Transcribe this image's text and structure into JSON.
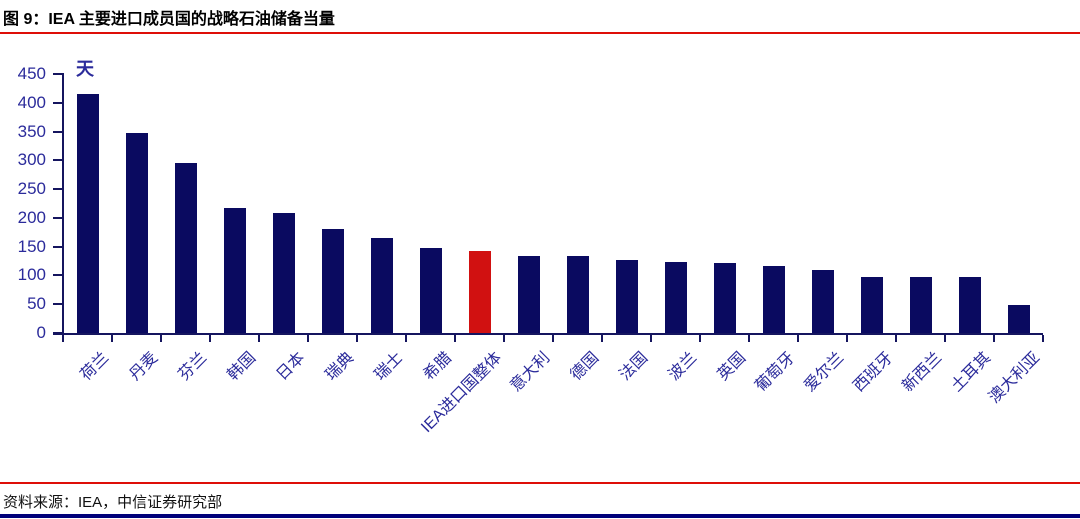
{
  "header": {
    "title": "图 9：IEA 主要进口成员国的战略石油储备当量"
  },
  "footer": {
    "source": "资料来源：IEA，中信证券研究部"
  },
  "chart_data": {
    "type": "bar",
    "title": "IEA 主要进口成员国的战略石油储备当量",
    "unit_label": "天",
    "categories": [
      "荷兰",
      "丹麦",
      "芬兰",
      "韩国",
      "日本",
      "瑞典",
      "瑞士",
      "希腊",
      "IEA进口国整体",
      "意大利",
      "德国",
      "法国",
      "波兰",
      "英国",
      "葡萄牙",
      "爱尔兰",
      "西班牙",
      "新西兰",
      "土耳其",
      "澳大利亚"
    ],
    "values": [
      415,
      347,
      295,
      217,
      209,
      180,
      165,
      147,
      142,
      134,
      133,
      126,
      124,
      122,
      116,
      110,
      98,
      97,
      97,
      49
    ],
    "highlight_category": "IEA进口国整体",
    "highlight_index": 8,
    "xlabel": "",
    "ylabel": "天",
    "ylim": [
      0,
      450
    ],
    "yticks": [
      0,
      50,
      100,
      150,
      200,
      250,
      300,
      350,
      400,
      450
    ],
    "grid": false,
    "legend_position": "none",
    "colors": {
      "bar": "#0a0a60",
      "highlight_bar": "#d11111",
      "axis": "#15155f",
      "axis_text": "#2b2b9b",
      "rule_red": "#de0e08",
      "rule_navy": "#00007a",
      "title_text": "#000000",
      "source_text": "#111111"
    }
  }
}
